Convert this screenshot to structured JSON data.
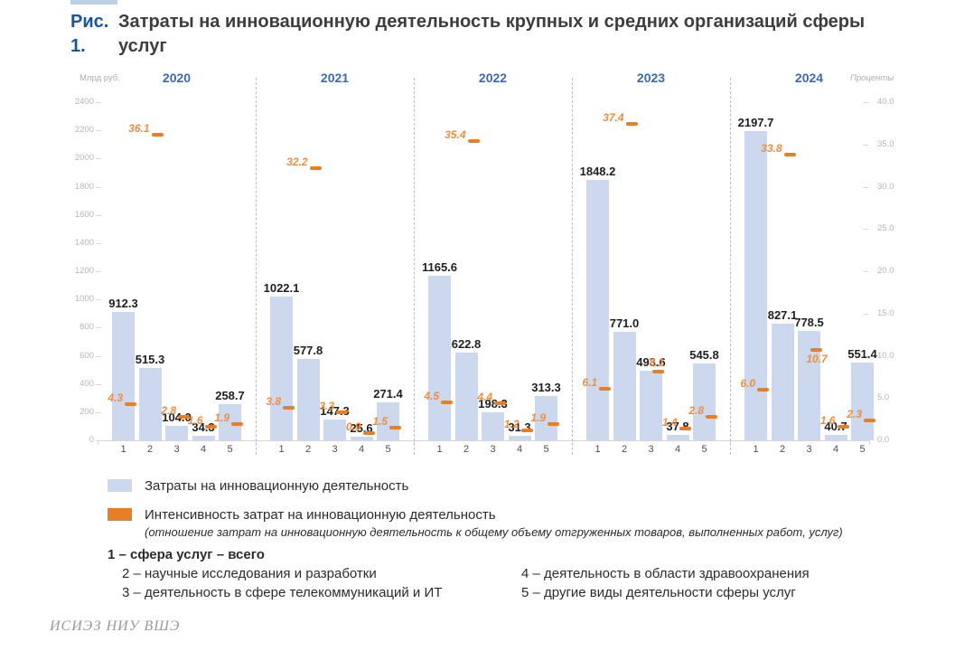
{
  "figure": {
    "label": "Рис. 1.",
    "title": "Затраты на инновационную деятельность крупных и средних организаций сферы услуг"
  },
  "chart_data": {
    "type": "bar",
    "unit_left": "Млрд руб.",
    "unit_right": "Проценты",
    "left_axis": {
      "min": 0,
      "max": 2400,
      "step": 200
    },
    "right_axis": {
      "min": 0,
      "max": 40,
      "step": 5
    },
    "categories": [
      "1",
      "2",
      "3",
      "4",
      "5"
    ],
    "groups": [
      {
        "year": "2020",
        "bars": [
          912.3,
          515.3,
          104.0,
          34.3,
          258.7
        ],
        "intensity": [
          4.3,
          36.1,
          2.8,
          1.6,
          1.9
        ]
      },
      {
        "year": "2021",
        "bars": [
          1022.1,
          577.8,
          147.3,
          25.6,
          271.4
        ],
        "intensity": [
          3.8,
          32.2,
          3.3,
          0.9,
          1.5
        ]
      },
      {
        "year": "2022",
        "bars": [
          1165.6,
          622.8,
          198.3,
          31.3,
          313.3
        ],
        "intensity": [
          4.5,
          35.4,
          4.4,
          1.2,
          1.9
        ]
      },
      {
        "year": "2023",
        "bars": [
          1848.2,
          771.0,
          493.6,
          37.8,
          545.8
        ],
        "intensity": [
          6.1,
          37.4,
          8.1,
          1.4,
          2.8
        ]
      },
      {
        "year": "2024",
        "bars": [
          2197.7,
          827.1,
          778.5,
          40.7,
          551.4
        ],
        "intensity": [
          6.0,
          33.8,
          10.7,
          1.6,
          2.3
        ]
      }
    ],
    "colors": {
      "bar": "#ccd8ed",
      "intensity": "#e87e25"
    },
    "grid": "off",
    "legend_position": "bottom"
  },
  "legend": {
    "items": [
      {
        "label": "Затраты на инновационную деятельность"
      },
      {
        "label": "Интенсивность затрат на инновационную деятельность",
        "note": "(отношение затрат на инновационную деятельность к общему объему отгруженных товаров, выполненных работ, услуг)"
      }
    ]
  },
  "category_definitions": {
    "first": "1 – сфера услуг – всего",
    "left": [
      "2 – научные исследования и разработки",
      "3 – деятельность в сфере телекоммуникаций и ИТ"
    ],
    "right": [
      "4 – деятельность в области здравоохранения",
      "5 – другие виды деятельности сферы услуг"
    ]
  },
  "footer": "ИСИЭЗ НИУ ВШЭ"
}
